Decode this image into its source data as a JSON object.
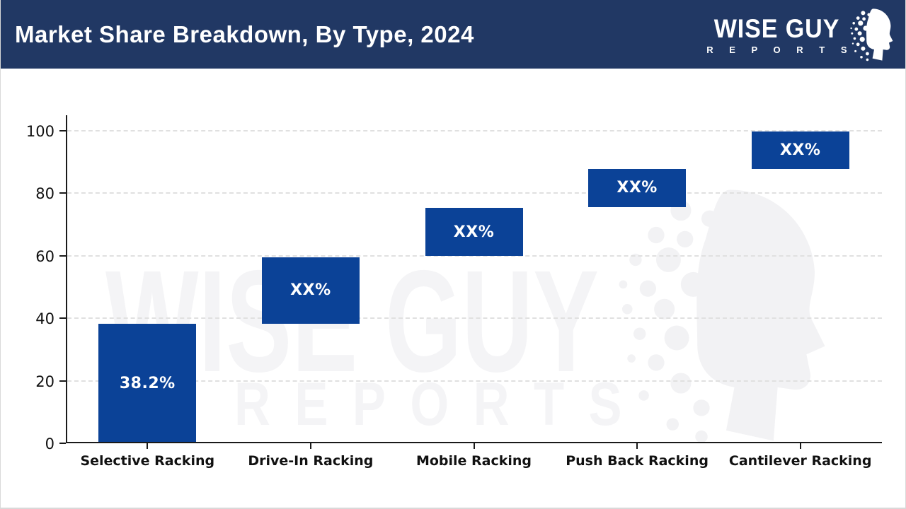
{
  "header": {
    "title": "Market Share Breakdown, By Type, 2024",
    "logo_line1": "WISE GUY",
    "logo_line2": "R E P O R T S"
  },
  "watermark": {
    "line1": "WISE GUY",
    "line2": "REPORTS"
  },
  "colors": {
    "header_bg": "#213864",
    "bar": "#0b4297",
    "axis": "#1a1a1a",
    "grid": "#e0e0e0",
    "watermark": "#f4f4f6",
    "value_label": "#ffffff"
  },
  "chart_data": {
    "type": "bar",
    "subtype": "waterfall",
    "title": "Market Share Breakdown, By Type, 2024",
    "categories": [
      "Selective Racking",
      "Drive-In Racking",
      "Mobile Racking",
      "Push Back Racking",
      "Cantilever Racking"
    ],
    "bars": [
      {
        "category": "Selective Racking",
        "from": 0,
        "to": 38.2,
        "label": "38.2%"
      },
      {
        "category": "Drive-In Racking",
        "from": 38.2,
        "to": 59.5,
        "label": "XX%"
      },
      {
        "category": "Mobile Racking",
        "from": 59.8,
        "to": 75.3,
        "label": "XX%"
      },
      {
        "category": "Push Back Racking",
        "from": 75.5,
        "to": 87.7,
        "label": "XX%"
      },
      {
        "category": "Cantilever Racking",
        "from": 87.6,
        "to": 99.7,
        "label": "XX%"
      }
    ],
    "xlabel": "",
    "ylabel": "",
    "ylim": [
      0,
      105
    ],
    "yticks": [
      0,
      20,
      40,
      60,
      80,
      100
    ],
    "grid": "horizontal-dashed",
    "legend": false
  }
}
